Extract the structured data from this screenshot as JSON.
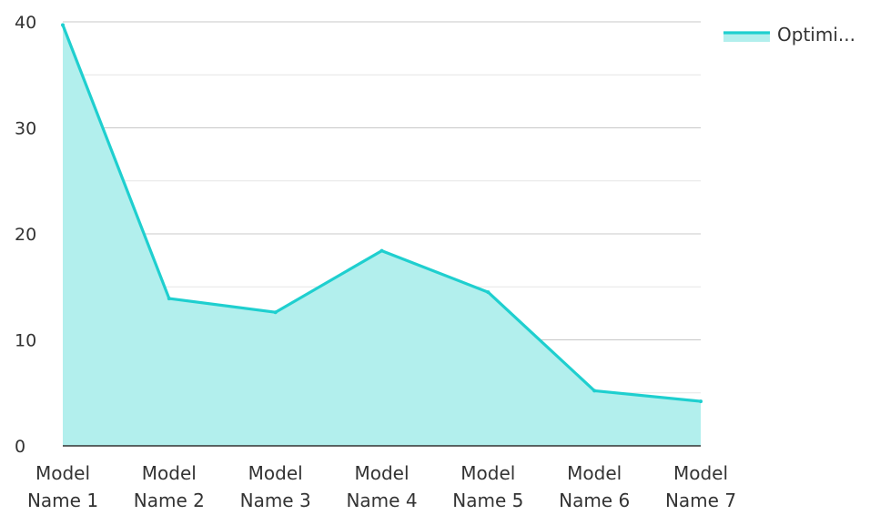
{
  "chart_data": {
    "type": "area",
    "title": "",
    "xlabel": "",
    "ylabel": "",
    "categories": [
      [
        "Model",
        "Name 1"
      ],
      [
        "Model",
        "Name 2"
      ],
      [
        "Model",
        "Name 3"
      ],
      [
        "Model",
        "Name 4"
      ],
      [
        "Model",
        "Name 5"
      ],
      [
        "Model",
        "Name 6"
      ],
      [
        "Model",
        "Name 7"
      ]
    ],
    "series": [
      {
        "name": "Optimi...",
        "values": [
          39.7,
          13.9,
          12.6,
          18.4,
          14.5,
          5.2,
          4.2
        ],
        "line_color": "#1fcfcf",
        "fill_color": "#b2efed"
      }
    ],
    "ylim": [
      0,
      40
    ],
    "y_ticks": [
      0,
      10,
      20,
      30,
      40
    ],
    "y_tick_labels": [
      "0",
      "10",
      "20",
      "30",
      "40"
    ],
    "grid": true,
    "legend_position": "top-right"
  }
}
